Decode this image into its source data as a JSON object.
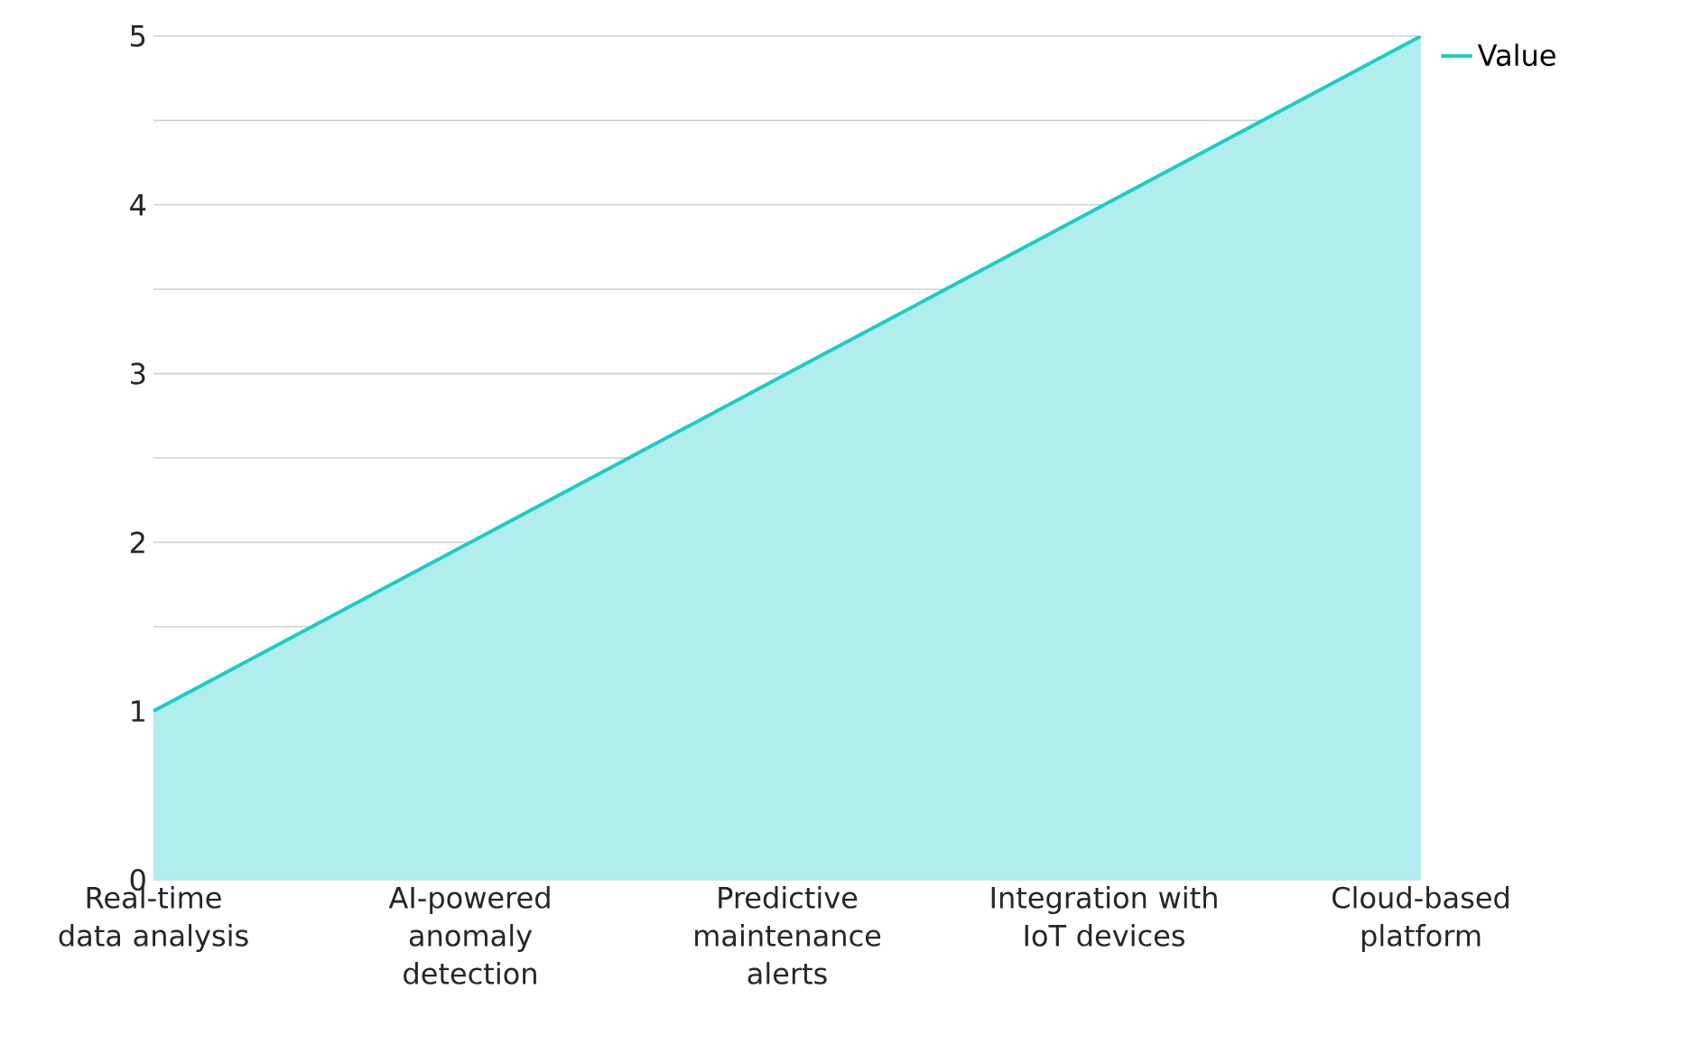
{
  "chart_data": {
    "type": "area",
    "categories": [
      "Real-time data analysis",
      "AI-powered anomaly detection",
      "Predictive maintenance alerts",
      "Integration with IoT devices",
      "Cloud-based platform"
    ],
    "series": [
      {
        "name": "Value",
        "color": "#1ccbc8",
        "values": [
          1,
          2,
          3,
          4,
          5
        ]
      }
    ],
    "ylim": [
      0,
      5
    ],
    "yticks": [
      0,
      {
        "value": 0.5,
        "label": null
      },
      1,
      {
        "value": 1.5,
        "label": null
      },
      2,
      {
        "value": 2.5,
        "label": null
      },
      3,
      {
        "value": 3.5,
        "label": null
      },
      4,
      {
        "value": 4.5,
        "label": null
      },
      5
    ],
    "grid": "y",
    "legend": "top right"
  }
}
